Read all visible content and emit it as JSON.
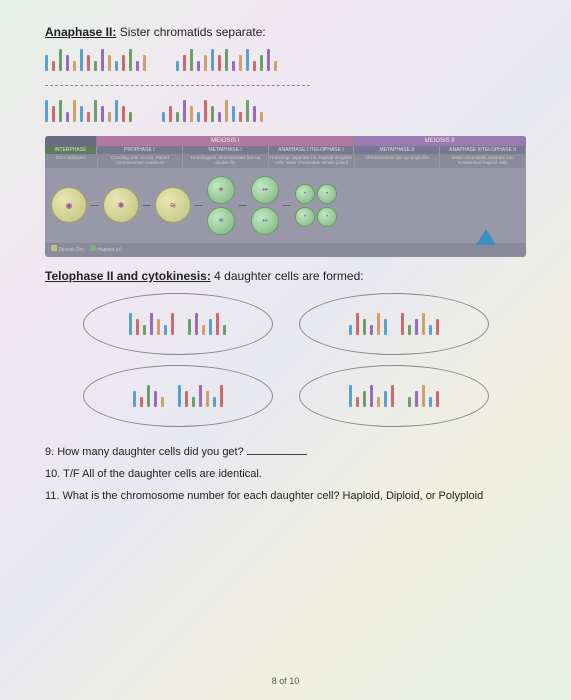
{
  "section1": {
    "title_bold": "Anaphase II:",
    "title_rest": " Sister chromatids separate:"
  },
  "diagram": {
    "header_meiosis1": "MEIOSIS I",
    "header_meiosis2": "MEIOSIS II",
    "sub_interphase": "INTERPHASE",
    "sub_prophase1": "PROPHASE I",
    "sub_metaphase1": "METAPHASE I",
    "sub_anatelo1": "ANAPHASE I /TELOPHASE I",
    "sub_metaphase2": "METAPHASE II",
    "sub_anatelo2": "ANAPHASE II/TELOPHASE II",
    "desc_inter": "DNA replicates",
    "desc_pro1": "Crossing over occurs. Paired chromosomes condense",
    "desc_meta1": "Homologous chromosomes line up double file",
    "desc_ana1": "Homologs separate into haploid daughter cells; sister chromatids remain joined",
    "desc_meta2": "Chromosomes line up single file",
    "desc_ana2": "Sister chromatids separate into nonidentical haploid cells",
    "legend_diploid": "Diploid (2n)",
    "legend_haploid": "Haploid (n)"
  },
  "section2": {
    "title_bold": "Telophase II and cytokinesis:",
    "title_rest": " 4 daughter cells are formed:"
  },
  "questions": {
    "q9": "9. How many daughter cells did you get?",
    "q10": "10. T/F All of the daughter cells are identical.",
    "q11": "11. What is the chromosome number for each daughter cell? Haploid, Diploid, or Polyploid"
  },
  "pagenum": "8 of 10",
  "colors": {
    "blue": "#5aa0d0",
    "red": "#d06a6a",
    "green": "#6aa06a",
    "purple": "#9a6ac0",
    "orange": "#d0a06a"
  }
}
